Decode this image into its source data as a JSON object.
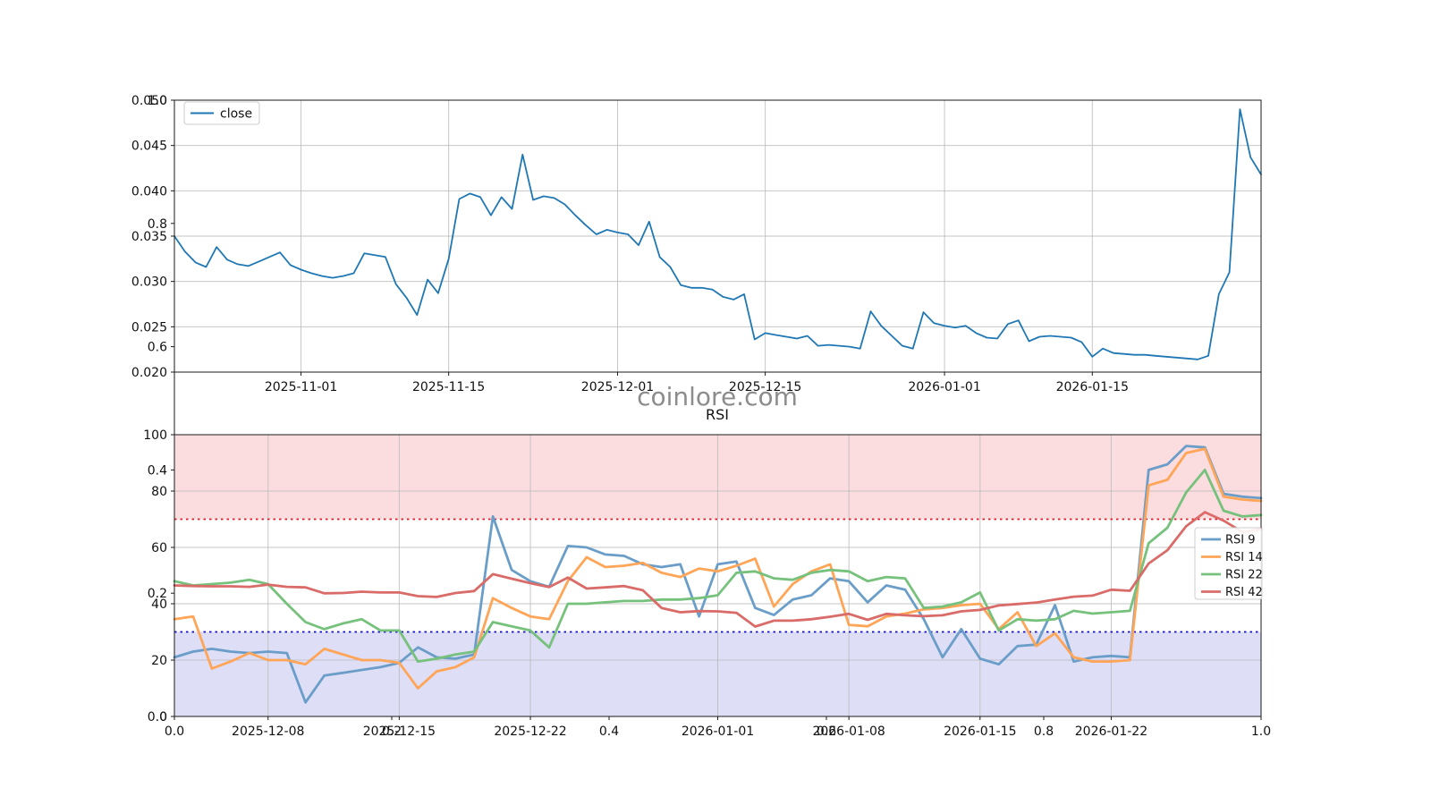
{
  "watermark": {
    "text": "coinlore.com",
    "color": "#8c8c8c"
  },
  "overlay_axis": {
    "ytick_labels": [
      "1.0",
      "0.8",
      "0.6",
      "0.4",
      "0.2",
      "0.0"
    ],
    "xtick_labels": [
      "0.0",
      "0.2",
      "0.4",
      "0.6",
      "0.8",
      "1.0"
    ]
  },
  "chart_data": [
    {
      "type": "line",
      "name": "price-panel",
      "title": "",
      "ylabel": "",
      "ylim": [
        0.02,
        0.05
      ],
      "ytick_labels": [
        "0.020",
        "0.025",
        "0.030",
        "0.035",
        "0.040",
        "0.045",
        "0.050"
      ],
      "yticks": [
        0.02,
        0.025,
        0.03,
        0.035,
        0.04,
        0.045,
        0.05
      ],
      "x_domain": [
        "2025-10-20",
        "2026-01-31"
      ],
      "xticks": [
        {
          "label": "2025-11-01",
          "t": 0.1165
        },
        {
          "label": "2025-11-15",
          "t": 0.2524
        },
        {
          "label": "2025-12-01",
          "t": 0.4078
        },
        {
          "label": "2025-12-15",
          "t": 0.5437
        },
        {
          "label": "2026-01-01",
          "t": 0.7087
        },
        {
          "label": "2026-01-15",
          "t": 0.8447
        }
      ],
      "grid": true,
      "legend": {
        "position": "top-left",
        "label": "close"
      },
      "series": [
        {
          "name": "close",
          "color": "#1f77b4",
          "width": 1.8,
          "values": [
            0.035,
            0.0333,
            0.0321,
            0.0316,
            0.0338,
            0.0324,
            0.0319,
            0.0317,
            0.0322,
            0.0327,
            0.0332,
            0.0318,
            0.0313,
            0.0309,
            0.0306,
            0.0304,
            0.0306,
            0.0309,
            0.0331,
            0.0329,
            0.0327,
            0.0297,
            0.0282,
            0.0263,
            0.0302,
            0.0287,
            0.0325,
            0.0391,
            0.0397,
            0.0393,
            0.0373,
            0.0393,
            0.038,
            0.044,
            0.039,
            0.0394,
            0.0392,
            0.0385,
            0.0373,
            0.0362,
            0.0352,
            0.0357,
            0.0354,
            0.0352,
            0.034,
            0.0366,
            0.0327,
            0.0316,
            0.0296,
            0.0293,
            0.0293,
            0.0291,
            0.0283,
            0.028,
            0.0286,
            0.0236,
            0.0243,
            0.0241,
            0.0239,
            0.0237,
            0.024,
            0.0229,
            0.023,
            0.0229,
            0.0228,
            0.0226,
            0.0267,
            0.0251,
            0.024,
            0.0229,
            0.0226,
            0.0266,
            0.0254,
            0.0251,
            0.0249,
            0.0251,
            0.0243,
            0.0238,
            0.0237,
            0.0253,
            0.0257,
            0.0234,
            0.0239,
            0.024,
            0.0239,
            0.0238,
            0.0233,
            0.0217,
            0.0226,
            0.0221,
            0.022,
            0.0219,
            0.0219,
            0.0218,
            0.0217,
            0.0216,
            0.0215,
            0.0214,
            0.0218,
            0.0286,
            0.031,
            0.049,
            0.0437,
            0.0418
          ]
        }
      ]
    },
    {
      "type": "line",
      "name": "rsi-panel",
      "title": "RSI",
      "ylim": [
        0,
        100
      ],
      "ytick_labels": [
        "0",
        "20",
        "40",
        "60",
        "80",
        "100"
      ],
      "yticks": [
        0,
        20,
        40,
        60,
        80,
        100
      ],
      "x_domain": [
        "2025-12-03",
        "2026-01-30"
      ],
      "xticks": [
        {
          "label": "2025-12-08",
          "t": 0.0862
        },
        {
          "label": "2025-12-15",
          "t": 0.2069
        },
        {
          "label": "2025-12-22",
          "t": 0.3276
        },
        {
          "label": "2026-01-01",
          "t": 0.5
        },
        {
          "label": "2026-01-08",
          "t": 0.6207
        },
        {
          "label": "2026-01-15",
          "t": 0.7414
        },
        {
          "label": "2026-01-22",
          "t": 0.8621
        }
      ],
      "grid": true,
      "bands": [
        {
          "from": 70,
          "to": 100,
          "color": "#fbdcdf",
          "name": "overbought-band"
        },
        {
          "from": 0,
          "to": 30,
          "color": "#dedef6",
          "name": "oversold-band"
        }
      ],
      "hlines": [
        {
          "y": 70,
          "color": "#e01a24",
          "style": "dotted",
          "name": "overbought-line"
        },
        {
          "y": 30,
          "color": "#1010cc",
          "style": "dotted",
          "name": "oversold-line"
        }
      ],
      "legend": {
        "position": "right"
      },
      "series": [
        {
          "name": "RSI 9",
          "color": "#6a9ec9",
          "width": 2.8,
          "values": [
            21,
            23,
            24,
            23,
            22.5,
            23,
            22.5,
            5,
            14.5,
            15.5,
            16.5,
            17.5,
            19,
            24.5,
            21,
            20.5,
            22,
            71,
            52,
            48,
            46,
            60.5,
            60,
            57.5,
            57,
            54,
            53,
            54,
            35.5,
            54,
            55,
            38.5,
            36,
            41.5,
            43,
            49,
            48,
            40.5,
            46.5,
            45,
            34.5,
            21,
            31,
            20.5,
            18.5,
            25,
            25.5,
            39.5,
            19.5,
            21,
            21.5,
            21,
            87.5,
            89.5,
            96,
            95.5,
            79,
            78,
            77.5
          ]
        },
        {
          "name": "RSI 14",
          "color": "#ffa557",
          "width": 2.8,
          "values": [
            34.5,
            35.5,
            17,
            19.5,
            22.5,
            20,
            20,
            18.5,
            24,
            22,
            20,
            20,
            19,
            10,
            16,
            17.5,
            21,
            42,
            38.5,
            35.5,
            34.5,
            48,
            56.5,
            53,
            53.5,
            54.5,
            51,
            49.5,
            52.5,
            51.5,
            53.5,
            56,
            39,
            47,
            51.5,
            54,
            32.5,
            32,
            35.5,
            36.5,
            38,
            38.5,
            39.5,
            40,
            31,
            37,
            25,
            29.5,
            21,
            19.5,
            19.5,
            20,
            82,
            84,
            93.5,
            95,
            78,
            77,
            76.5
          ]
        },
        {
          "name": "RSI 22",
          "color": "#76c17c",
          "width": 2.8,
          "values": [
            48,
            46.5,
            47,
            47.5,
            48.5,
            47,
            40,
            33.5,
            31,
            33,
            34.5,
            30.5,
            30.5,
            19.5,
            20.5,
            22,
            23,
            33.5,
            32,
            30.5,
            24.5,
            40,
            40,
            40.5,
            41,
            41,
            41.5,
            41.5,
            42,
            43,
            51,
            51.5,
            49,
            48.5,
            51,
            52,
            51.5,
            48,
            49.5,
            49,
            38.5,
            39,
            40.5,
            44,
            30.5,
            34.5,
            34,
            34.5,
            37.5,
            36.5,
            37,
            37.5,
            61.5,
            67,
            79.5,
            87.5,
            73,
            71,
            71.5
          ]
        },
        {
          "name": "RSI 42",
          "color": "#d96b68",
          "width": 2.8,
          "values": [
            46.5,
            46.3,
            46.2,
            46.2,
            46,
            46.8,
            46,
            45.8,
            43.7,
            43.8,
            44.3,
            44,
            44,
            42.7,
            42.4,
            43.8,
            44.5,
            50.5,
            48.9,
            47.3,
            45.9,
            49.3,
            45.4,
            45.8,
            46.3,
            44.8,
            38.5,
            37,
            37.4,
            37.3,
            36.8,
            31.9,
            34,
            34,
            34.5,
            35.4,
            36.4,
            34.3,
            36.4,
            35.9,
            35.6,
            35.9,
            37.3,
            37.8,
            39.4,
            39.9,
            40.4,
            41.5,
            42.5,
            42.9,
            45,
            44.6,
            54.3,
            59,
            67.5,
            72.5,
            69.5,
            65.5,
            66.5
          ]
        }
      ]
    }
  ]
}
